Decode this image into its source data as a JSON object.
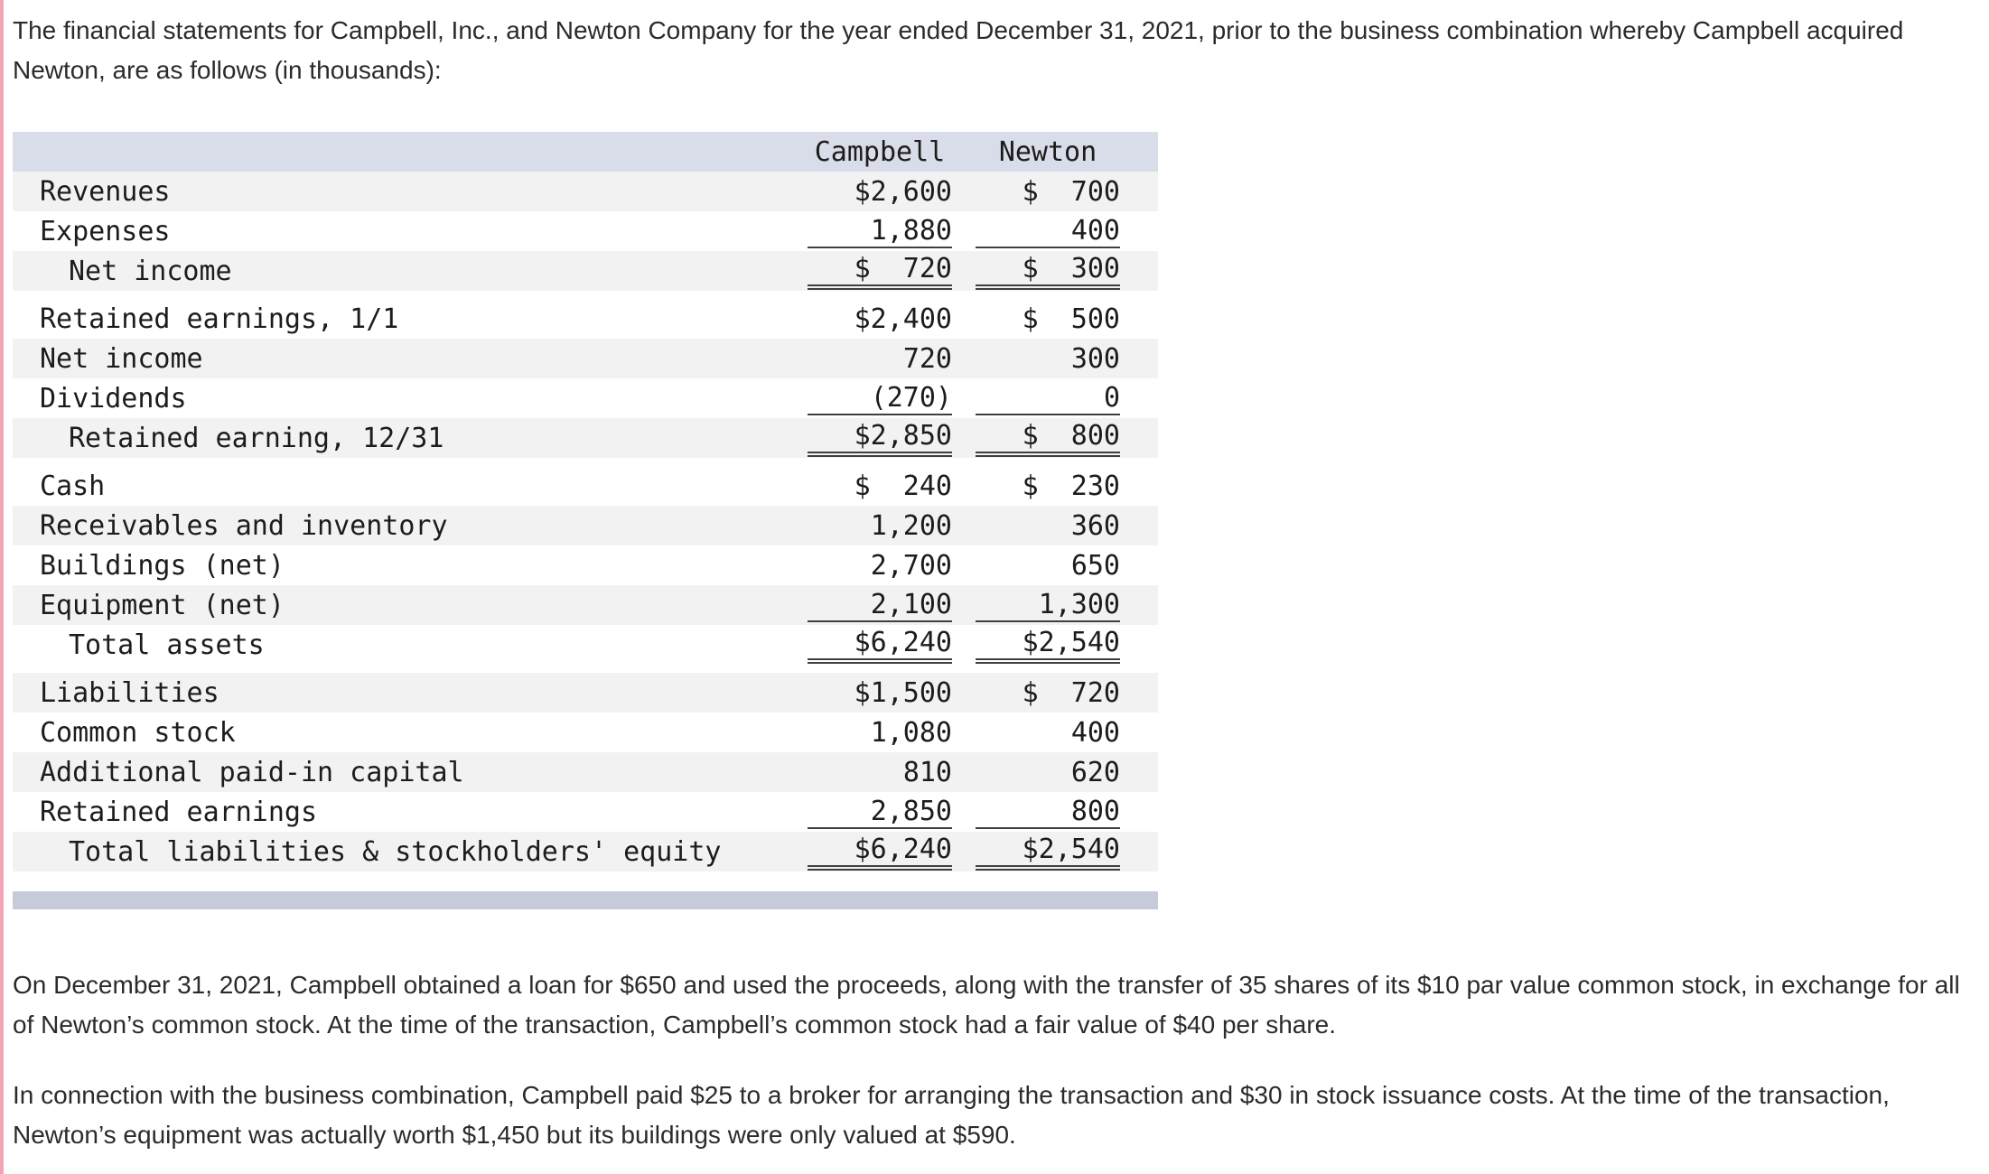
{
  "colors": {
    "header_bg": "#d9dde9",
    "stripe_bg": "#f2f2f3",
    "footer_bar": "#c5cbd9",
    "accent_left": "#f2a4b4"
  },
  "page": {
    "intro": "The financial statements for Campbell, Inc., and Newton Company for the year ended December 31, 2021, prior to the business combination whereby Campbell acquired Newton, are as follows (in thousands):",
    "para1": "On December 31, 2021, Campbell obtained a loan for $650 and used the proceeds, along with the transfer of 35 shares of its $10 par value common stock, in exchange for all of Newton’s common stock. At the time of the transaction, Campbell’s common stock had a fair value of $40 per share.",
    "para2": "In connection with the business combination, Campbell paid $25 to a broker for arranging the transaction and $30 in stock issuance costs. At the time of the transaction, Newton’s equipment was actually worth $1,450 but its buildings were only valued at $590."
  },
  "table": {
    "columns": [
      "Campbell",
      "Newton"
    ],
    "rows": [
      {
        "label": "Revenues",
        "campbell": "$2,600",
        "newton": "$  700"
      },
      {
        "label": "Expenses",
        "campbell": "1,880",
        "newton": "400"
      },
      {
        "label": "Net income",
        "campbell": "$  720",
        "newton": "$  300"
      },
      {
        "label": "Retained earnings, 1/1",
        "campbell": "$2,400",
        "newton": "$  500"
      },
      {
        "label": "Net income",
        "campbell": "720",
        "newton": "300"
      },
      {
        "label": "Dividends",
        "campbell": "(270)",
        "newton": "0"
      },
      {
        "label": "Retained earning, 12/31",
        "campbell": "$2,850",
        "newton": "$  800"
      },
      {
        "label": "Cash",
        "campbell": "$  240",
        "newton": "$  230"
      },
      {
        "label": "Receivables and inventory",
        "campbell": "1,200",
        "newton": "360"
      },
      {
        "label": "Buildings (net)",
        "campbell": "2,700",
        "newton": "650"
      },
      {
        "label": "Equipment (net)",
        "campbell": "2,100",
        "newton": "1,300"
      },
      {
        "label": "Total assets",
        "campbell": "$6,240",
        "newton": "$2,540"
      },
      {
        "label": "Liabilities",
        "campbell": "$1,500",
        "newton": "$  720"
      },
      {
        "label": "Common stock",
        "campbell": "1,080",
        "newton": "400"
      },
      {
        "label": "Additional paid-in capital",
        "campbell": "810",
        "newton": "620"
      },
      {
        "label": "Retained earnings",
        "campbell": "2,850",
        "newton": "800"
      },
      {
        "label": "Total liabilities & stockholders' equity",
        "campbell": "$6,240",
        "newton": "$2,540"
      }
    ]
  }
}
